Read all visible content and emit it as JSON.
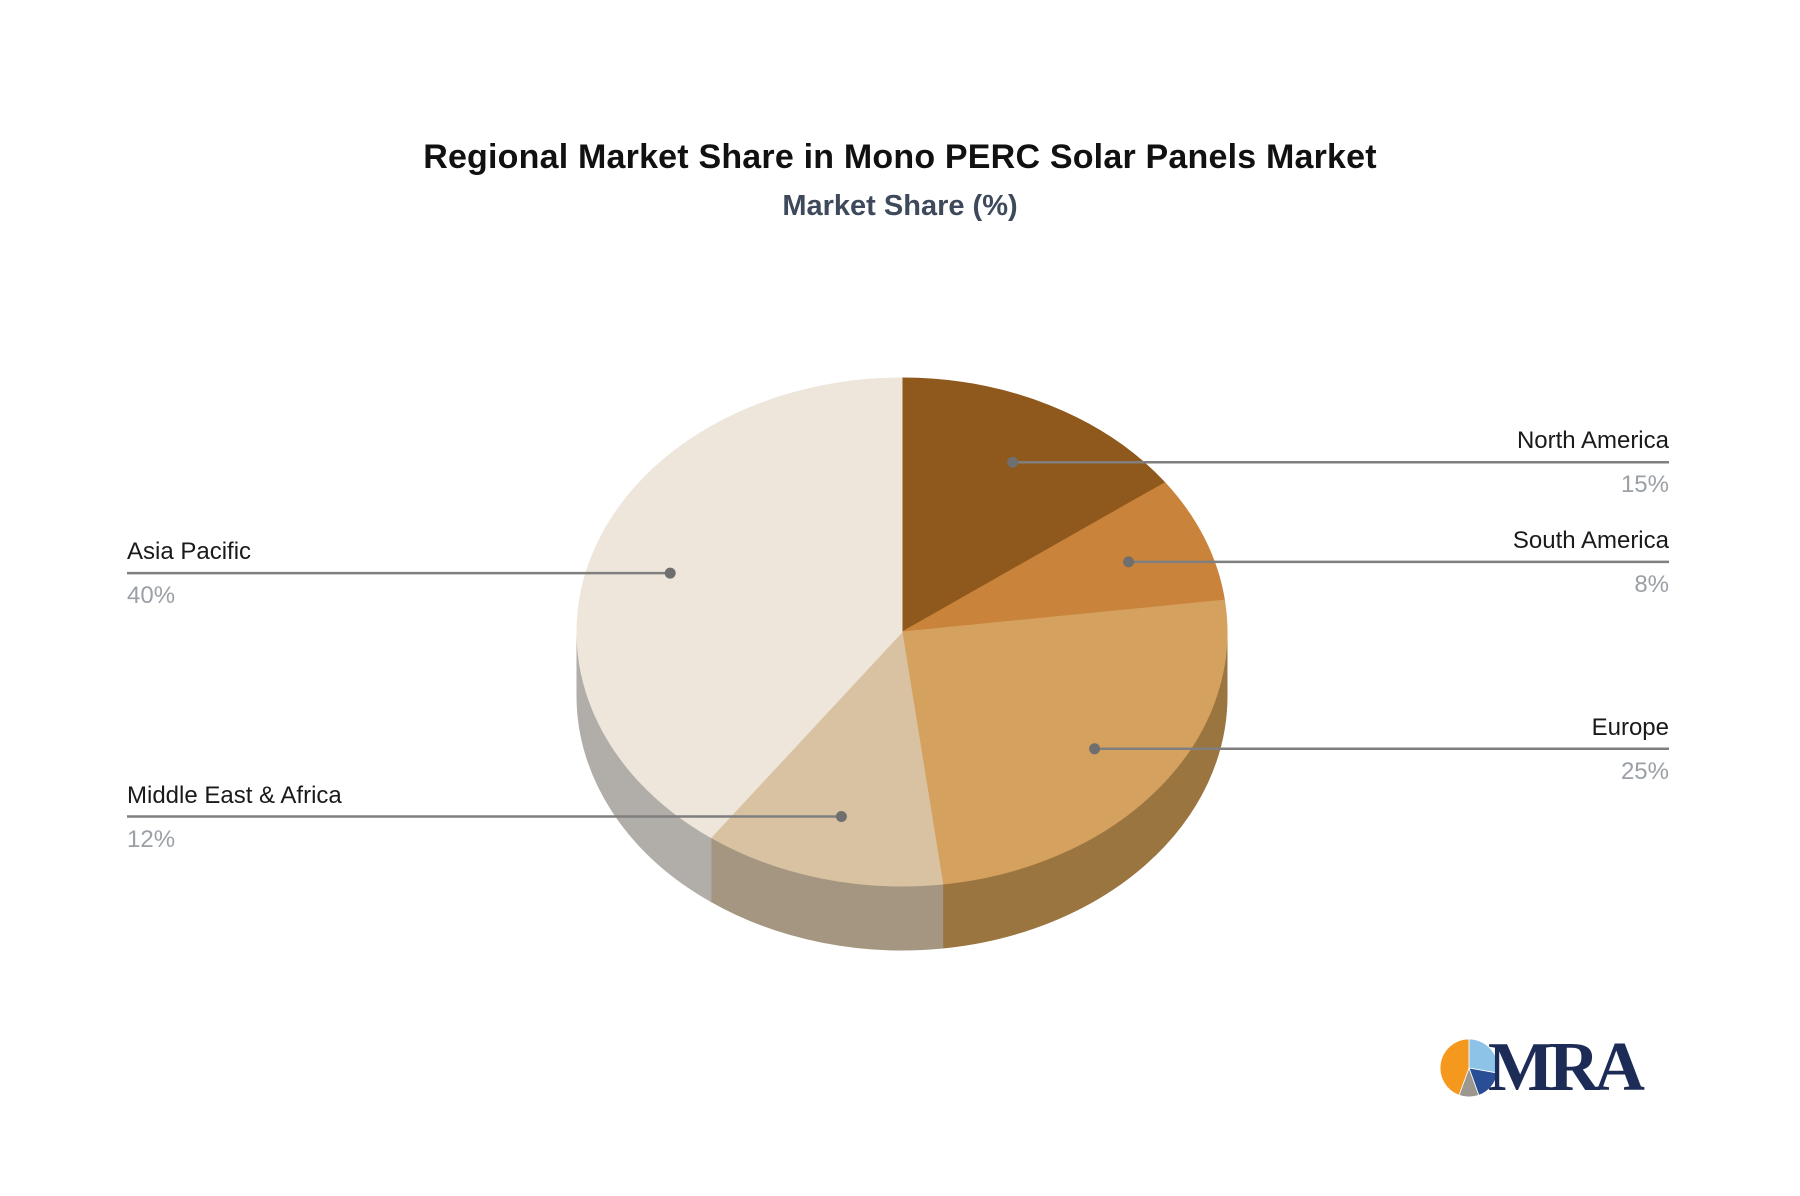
{
  "title": "Regional Market Share in Mono PERC Solar Panels Market",
  "subtitle": "Market Share (%)",
  "chart_data": {
    "type": "pie",
    "style": "3d-pie-with-callouts",
    "title": "Regional Market Share in Mono PERC Solar Panels Market",
    "subtitle": "Market Share (%)",
    "unit": "%",
    "start_angle_deg": 0,
    "direction": "clockwise",
    "legend_position": "callout-labels",
    "categories": [
      "North America",
      "South America",
      "Europe",
      "Middle East & Africa",
      "Asia Pacific"
    ],
    "values": [
      15,
      8,
      25,
      12,
      40
    ],
    "slices": [
      {
        "label": "North America",
        "value": 15,
        "pct": "15%",
        "color": "#8F581C",
        "side_color": "#6B4214"
      },
      {
        "label": "South America",
        "value": 8,
        "pct": "8%",
        "color": "#C9833A",
        "side_color": "#96622C"
      },
      {
        "label": "Europe",
        "value": 25,
        "pct": "25%",
        "color": "#D5A15F",
        "side_color": "#9A7540"
      },
      {
        "label": "Middle East & Africa",
        "value": 12,
        "pct": "12%",
        "color": "#D9C2A2",
        "side_color": "#A49680"
      },
      {
        "label": "Asia Pacific",
        "value": 40,
        "pct": "40%",
        "color": "#EEE6DB",
        "side_color": "#B1ADA9"
      }
    ],
    "callout_line_color": "#7F7F7F",
    "callout_dot_color": "#6F6F6F",
    "label_color": "#1A1A1A",
    "pct_color": "#9AA0A6"
  },
  "logo": {
    "text": "MRA",
    "text_color": "#1D2B57",
    "icon": {
      "slices": [
        {
          "name": "light-blue",
          "color": "#8EC3E8",
          "value": 27.8
        },
        {
          "name": "navy",
          "color": "#2A4E96",
          "value": 16.7
        },
        {
          "name": "gray",
          "color": "#9C9890",
          "value": 11.1
        },
        {
          "name": "orange",
          "color": "#F5991E",
          "value": 44.4
        }
      ]
    }
  }
}
